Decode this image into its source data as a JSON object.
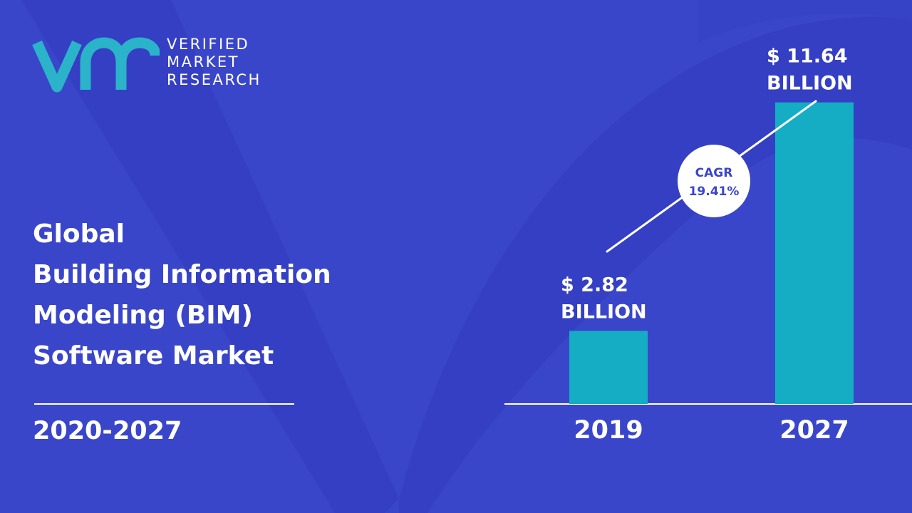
{
  "brand": {
    "name_lines": [
      "VERIFIED",
      "MARKET",
      "RESEARCH"
    ],
    "logo_icon": "vmr-logo",
    "accent_color": "#2ab3c9"
  },
  "report": {
    "title_lines": [
      "Global",
      "Building Information",
      "Modeling (BIM)",
      "Software Market"
    ],
    "period": "2020-2027"
  },
  "colors": {
    "background": "#3a46c9",
    "bar": "#14adc4",
    "text": "#ffffff",
    "cagr_text": "#3a46c9"
  },
  "chart_data": {
    "type": "bar",
    "categories": [
      "2019",
      "2027"
    ],
    "values": [
      2.82,
      11.64
    ],
    "value_labels": [
      [
        "$ 2.82",
        "BILLION"
      ],
      [
        "$ 11.64",
        "BILLION"
      ]
    ],
    "unit": "BILLION",
    "ylim": [
      0,
      15
    ],
    "grid": false,
    "legend": "none",
    "annotation": {
      "lines": [
        "CAGR",
        "19.41%"
      ],
      "shape": "circle"
    }
  }
}
